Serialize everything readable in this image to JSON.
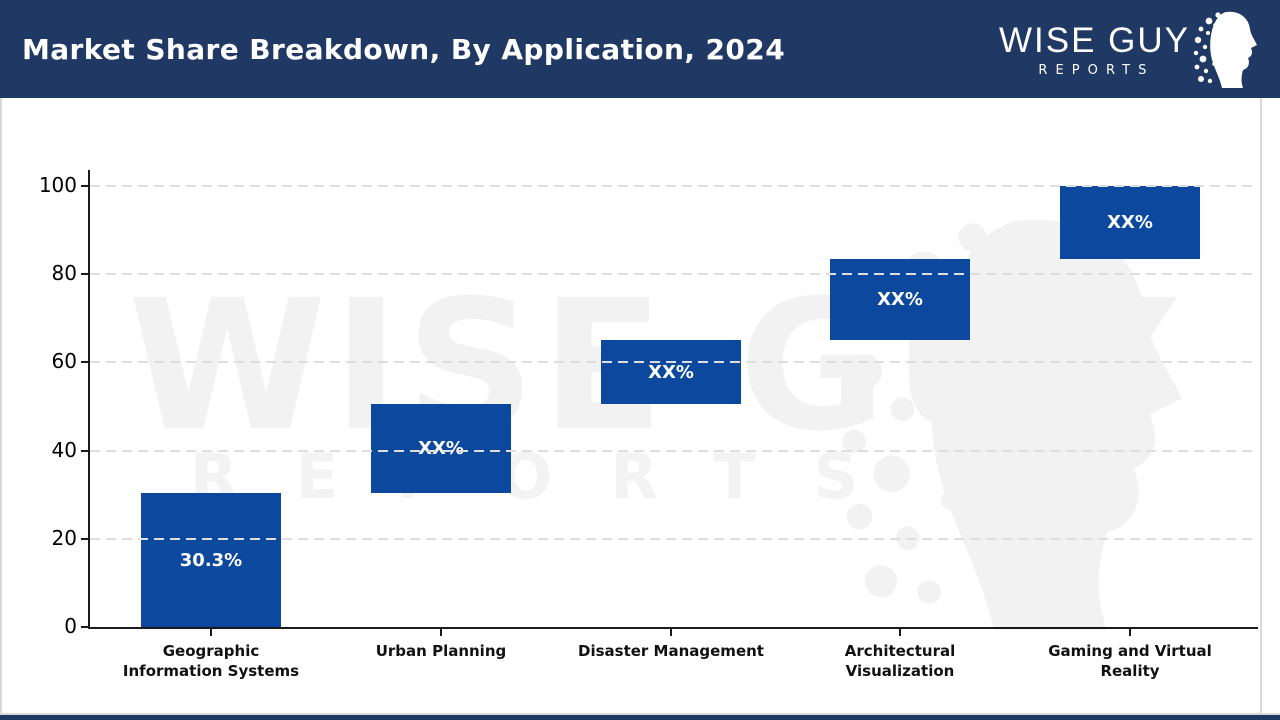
{
  "header": {
    "title": "Market Share Breakdown, By Application, 2024",
    "logo": {
      "word": "WISE GUY",
      "sub": "REPORTS"
    },
    "bg_color": "#1F3864"
  },
  "watermark": {
    "word": "WISE GUY",
    "sub": "REPORTS"
  },
  "chart_data": {
    "type": "bar",
    "subtype": "waterfall",
    "title": "Market Share Breakdown, By Application, 2024",
    "categories": [
      "Geographic Information Systems",
      "Urban Planning",
      "Disaster Management",
      "Architectural Visualization",
      "Gaming and Virtual Reality"
    ],
    "segments": [
      {
        "start": 0,
        "end": 30.3,
        "label": "30.3%"
      },
      {
        "start": 30.3,
        "end": 50.5,
        "label": "XX%"
      },
      {
        "start": 50.5,
        "end": 65,
        "label": "XX%"
      },
      {
        "start": 65,
        "end": 83.5,
        "label": "XX%"
      },
      {
        "start": 83.5,
        "end": 100,
        "label": "XX%"
      }
    ],
    "xlabel": "",
    "ylabel": "",
    "yticks": [
      0,
      20,
      40,
      60,
      80,
      100
    ],
    "ylim": [
      0,
      100
    ],
    "grid": "horizontal-dashed",
    "legend": "none",
    "bar_color": "#0B489E",
    "bar_label_color": "#ffffff"
  }
}
